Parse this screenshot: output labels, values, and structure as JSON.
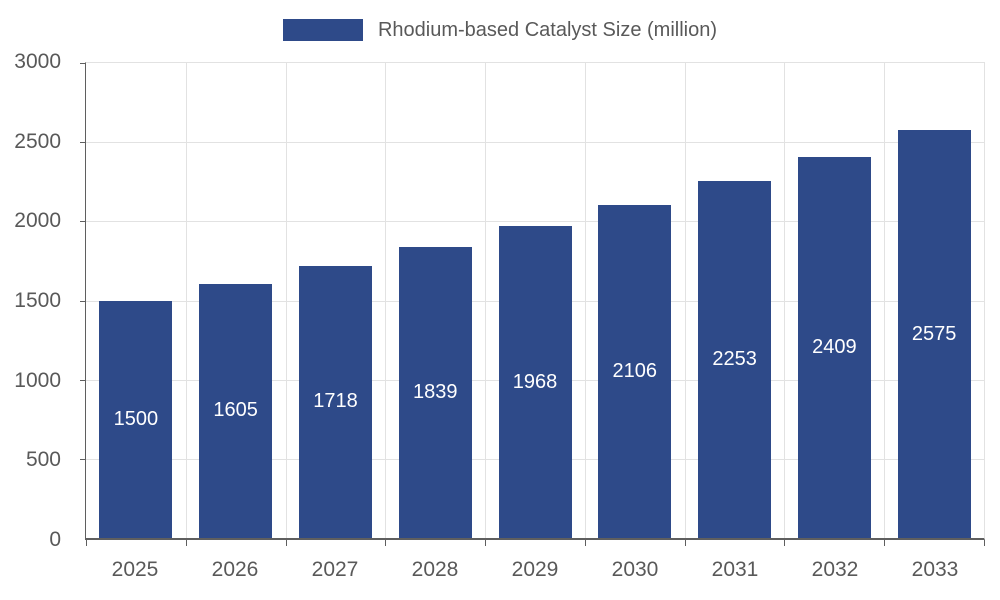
{
  "legend": {
    "label": "Rhodium-based Catalyst Size (million)"
  },
  "colors": {
    "bar": "#2E4A89",
    "bar_label": "#FFFFFF",
    "axis_text": "#595959",
    "grid_line": "#E2E2E2",
    "axis_line": "#5F5F5F",
    "background": "#FFFFFF"
  },
  "chart_data": {
    "type": "bar",
    "title": "Rhodium-based Catalyst Size (million)",
    "categories": [
      "2025",
      "2026",
      "2027",
      "2028",
      "2029",
      "2030",
      "2031",
      "2032",
      "2033"
    ],
    "values": [
      1500,
      1605,
      1718,
      1839,
      1968,
      2106,
      2253,
      2409,
      2575
    ],
    "series": [
      {
        "name": "Rhodium-based Catalyst Size (million)",
        "values": [
          1500,
          1605,
          1718,
          1839,
          1968,
          2106,
          2253,
          2409,
          2575
        ]
      }
    ],
    "xlabel": "",
    "ylabel": "",
    "ylim": [
      0,
      3000
    ],
    "yticks": [
      0,
      500,
      1000,
      1500,
      2000,
      2500,
      3000
    ],
    "grid": true,
    "legend_position": "top",
    "value_label_position": "inside-center"
  }
}
